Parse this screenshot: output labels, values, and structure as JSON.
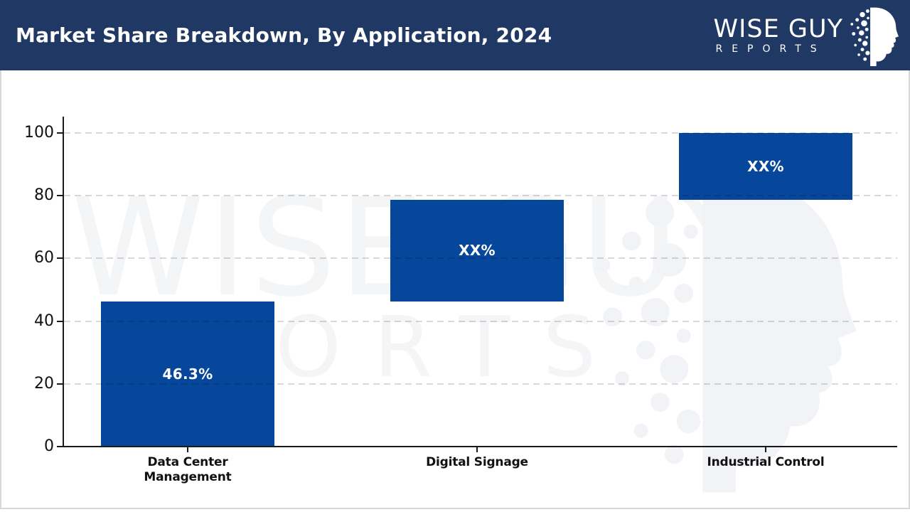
{
  "header": {
    "title": "Market Share Breakdown, By Application, 2024",
    "logo": {
      "line1": "WISE GUY",
      "line2": "REPORTS"
    }
  },
  "watermark": {
    "line1": "WISE GUY",
    "line2": "PORTS"
  },
  "chart_data": {
    "type": "bar",
    "variant": "floating-waterfall-percent",
    "title": "Market Share Breakdown, By Application, 2024",
    "categories": [
      "Data Center Management",
      "Digital Signage",
      "Industrial Control"
    ],
    "bars": [
      {
        "category": "Data Center Management",
        "start": 0,
        "end": 46.3,
        "label": "46.3%"
      },
      {
        "category": "Digital Signage",
        "start": 46.3,
        "end": 78.7,
        "label": "XX%"
      },
      {
        "category": "Industrial Control",
        "start": 78.7,
        "end": 100,
        "label": "XX%"
      }
    ],
    "xlabel": "",
    "ylabel": "",
    "ylim": [
      0,
      105
    ],
    "yticks": [
      0,
      20,
      40,
      60,
      80,
      100
    ],
    "grid": {
      "horizontal": true,
      "style": "dashed",
      "above_bars": true
    },
    "legend": "none"
  },
  "colors": {
    "header_bg": "#1f3864",
    "bar": "#06479b",
    "axis": "#1a1a1a",
    "grid": "#d9d9d9",
    "watermark": "#f4f5f7",
    "panel_border": "#d8d8d8",
    "bar_label_text": "#ffffff"
  }
}
